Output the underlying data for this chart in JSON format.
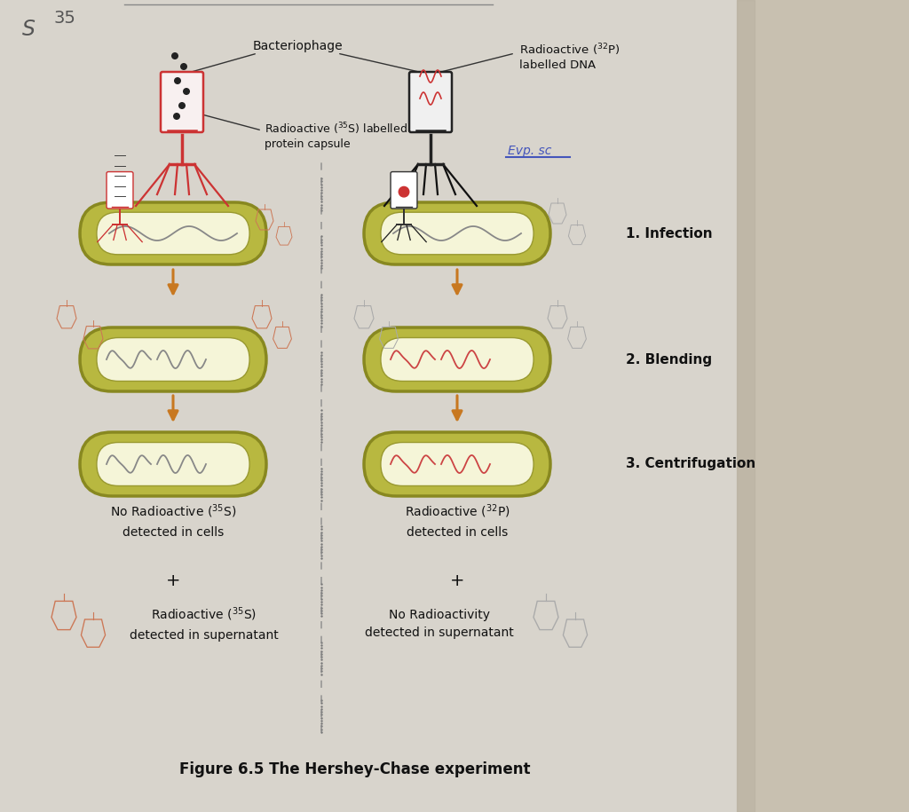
{
  "background_color": "#d8d4cc",
  "page_color": "#e8e5de",
  "title": "Figure 6.5 The Hershey-Chase experiment",
  "title_fontsize": 12,
  "title_fontweight": "bold",
  "labels": {
    "bacteriophage": "Bacteriophage",
    "radioactive_s": "Radioactive ($^{35}$S) labelled\nprotein capsule",
    "radioactive_p_top": "Radioactive ($^{32}$P)\nlabelled DNA",
    "infection": "1. Infection",
    "blending": "2. Blending",
    "centrifugation": "3. Centrifugation",
    "no_radioactive_s_cells": "No Radioactive ($^{35}$S)\ndetected in cells",
    "plus_left": "+",
    "radioactive_s_supernatant": "Radioactive ($^{35}$S)\ndetected in supernatant",
    "radioactive_p_cells": "Radioactive ($^{32}$P)\ndetected in cells",
    "plus_right": "+",
    "no_radioactivity_supernatant": "No Radioactivity\ndetected in supernatant"
  },
  "colors": {
    "cell_outer": "#b8b840",
    "cell_inner": "#f5f5d8",
    "dna_left": "#888888",
    "dna_right": "#cc4444",
    "phage_left_body": "#cc3333",
    "phage_left_legs": "#cc3333",
    "phage_right_body": "#222222",
    "phage_right_legs": "#111111",
    "arrow_color": "#c87820",
    "flask_left": "#cc7755",
    "flask_right": "#999999",
    "text_color": "#111111",
    "dashed_line": "#888888",
    "handwriting": "#555555",
    "handwriting_blue": "#4455bb",
    "page_edge": "#b0aa9a",
    "right_page": "#c8c0b0"
  }
}
